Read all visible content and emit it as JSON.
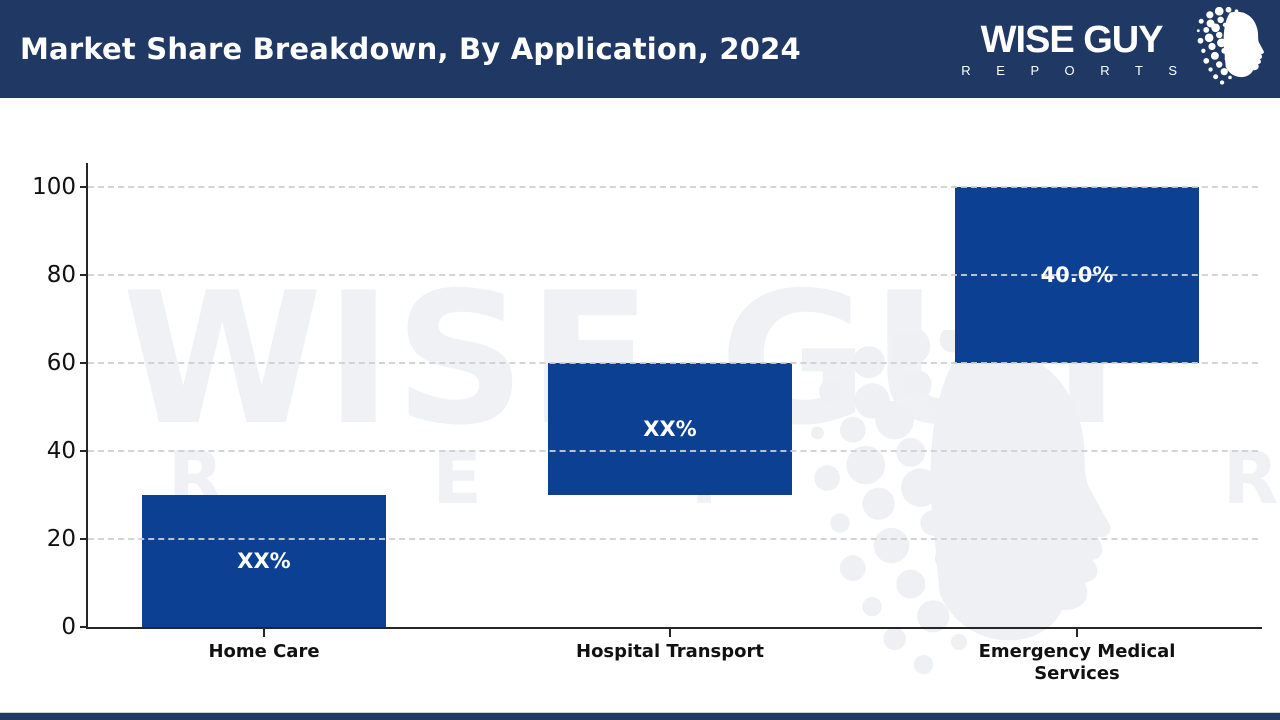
{
  "header": {
    "title": "Market Share Breakdown, By Application, 2024",
    "bg_color": "#1f3864",
    "brand": {
      "line1": "WISE GUY",
      "line2": "R E P O R T S",
      "face_icon": "wiseguy-face-logo"
    }
  },
  "watermark": {
    "line1": "WISE GUY",
    "line2": "R E P O R T S",
    "color": "#f0f1f4"
  },
  "chart_data": {
    "type": "bar",
    "variant": "floating-segment-breakdown",
    "title": "Market Share Breakdown, By Application, 2024",
    "categories": [
      "Home Care",
      "Hospital Transport",
      "Emergency Medical Services"
    ],
    "segments": [
      {
        "category": "Home Care",
        "from": 0,
        "to": 30,
        "label": "XX%"
      },
      {
        "category": "Hospital Transport",
        "from": 30,
        "to": 60,
        "label": "XX%"
      },
      {
        "category": "Emergency Medical Services",
        "from": 60,
        "to": 100,
        "label": "40.0%"
      }
    ],
    "yticks": [
      0,
      20,
      40,
      60,
      80,
      100
    ],
    "ylim": [
      0,
      105
    ],
    "xlabel": "",
    "ylabel": "",
    "grid": "dashed-horizontal",
    "legend": "none",
    "bar_color": "#0b4093",
    "value_label_color": "#ffffff",
    "axis_color": "#262626",
    "grid_color": "#d9d9d9"
  }
}
